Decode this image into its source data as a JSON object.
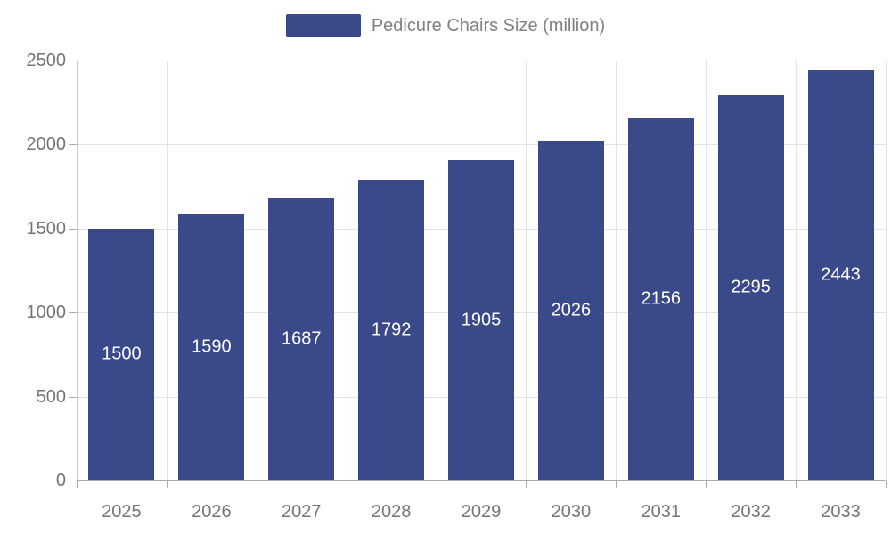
{
  "chart_data": {
    "type": "bar",
    "title": "",
    "series_name": "Pedicure Chairs Size (million)",
    "categories": [
      "2025",
      "2026",
      "2027",
      "2028",
      "2029",
      "2030",
      "2031",
      "2032",
      "2033"
    ],
    "values": [
      1500,
      1590,
      1687,
      1792,
      1905,
      2026,
      2156,
      2295,
      2443
    ],
    "xlabel": "",
    "ylabel": "",
    "ylim": [
      0,
      2500
    ],
    "yticks": [
      0,
      500,
      1000,
      1500,
      2000,
      2500
    ],
    "grid": true,
    "legend_position": "top-center",
    "value_label_position": "inside-center",
    "colors": {
      "bar": "#394989",
      "value_label": "#ffffff",
      "axis_label": "#757575",
      "legend_text": "#808080",
      "gridline": "#e3e3e3",
      "y_axis_line": "#c9c9c9",
      "x_axis_line": "#aaaaaa",
      "background": "#ffffff"
    }
  }
}
